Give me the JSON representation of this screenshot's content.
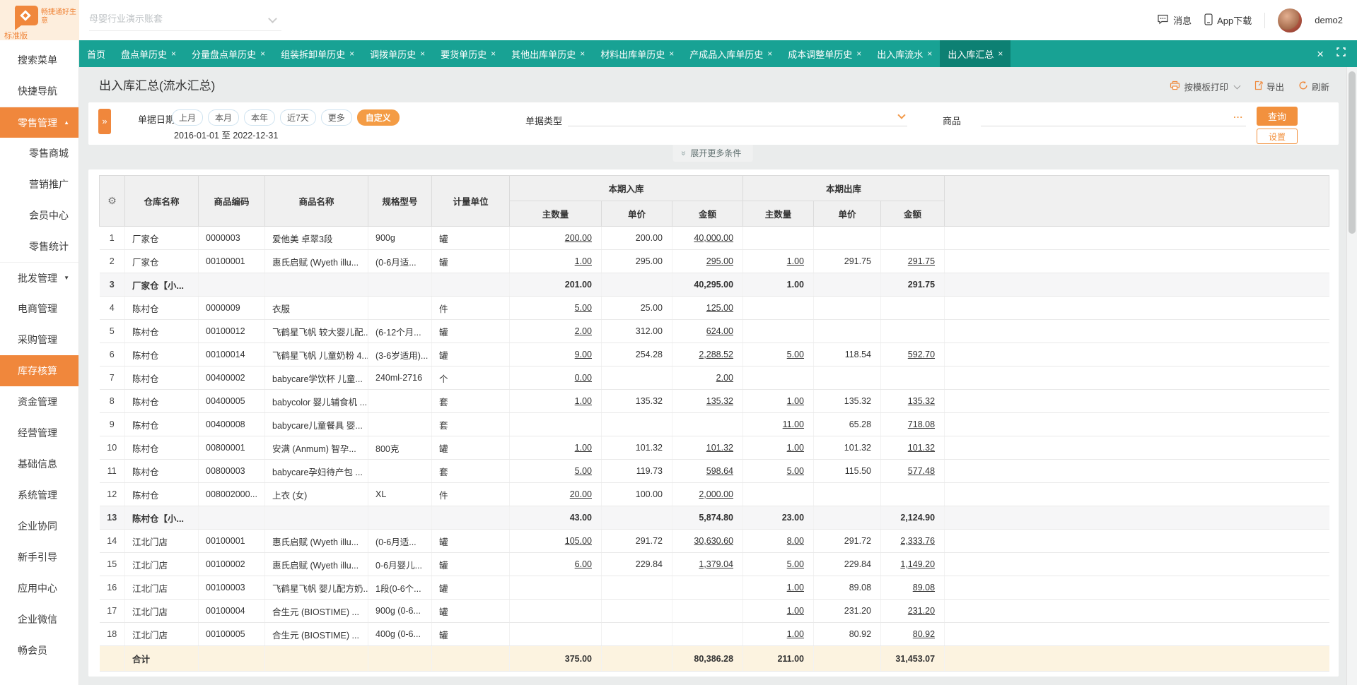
{
  "header": {
    "logo_title": "畅捷通好生意",
    "logo_edition": "标准版",
    "account_selector": "母婴行业演示账套",
    "messages_label": "消息",
    "app_download_label": "App下载",
    "username": "demo2"
  },
  "icons": {
    "close": "×",
    "expander": "»",
    "double_chevron": "»",
    "ellipsis": "...",
    "gear": "⚙",
    "arrow_up": "▲",
    "arrow_down": "▼"
  },
  "tabs": {
    "items": [
      {
        "label": "首页",
        "closable": false,
        "active": false
      },
      {
        "label": "盘点单历史",
        "closable": true,
        "active": false
      },
      {
        "label": "分量盘点单历史",
        "closable": true,
        "active": false
      },
      {
        "label": "组装拆卸单历史",
        "closable": true,
        "active": false
      },
      {
        "label": "调拨单历史",
        "closable": true,
        "active": false
      },
      {
        "label": "要货单历史",
        "closable": true,
        "active": false
      },
      {
        "label": "其他出库单历史",
        "closable": true,
        "active": false
      },
      {
        "label": "材料出库单历史",
        "closable": true,
        "active": false
      },
      {
        "label": "产成品入库单历史",
        "closable": true,
        "active": false
      },
      {
        "label": "成本调整单历史",
        "closable": true,
        "active": false
      },
      {
        "label": "出入库流水",
        "closable": true,
        "active": false
      },
      {
        "label": "出入库汇总",
        "closable": true,
        "active": true
      }
    ]
  },
  "sidebar": {
    "items": [
      {
        "label": "搜索菜单",
        "child": false,
        "active": false,
        "arrow": "",
        "sep": false
      },
      {
        "label": "快捷导航",
        "child": false,
        "active": false,
        "arrow": "",
        "sep": false
      },
      {
        "label": "零售管理",
        "child": false,
        "active": true,
        "arrow": "up",
        "sep": true
      },
      {
        "label": "零售商城",
        "child": true,
        "active": false,
        "arrow": "",
        "sep": false
      },
      {
        "label": "营销推广",
        "child": true,
        "active": false,
        "arrow": "",
        "sep": false
      },
      {
        "label": "会员中心",
        "child": true,
        "active": false,
        "arrow": "",
        "sep": false
      },
      {
        "label": "零售统计",
        "child": true,
        "active": false,
        "arrow": "",
        "sep": false
      },
      {
        "label": "批发管理",
        "child": false,
        "active": false,
        "arrow": "down",
        "sep": true
      },
      {
        "label": "电商管理",
        "child": false,
        "active": false,
        "arrow": "",
        "sep": false
      },
      {
        "label": "采购管理",
        "child": false,
        "active": false,
        "arrow": "",
        "sep": false
      },
      {
        "label": "库存核算",
        "child": false,
        "active": true,
        "arrow": "",
        "sep": false
      },
      {
        "label": "资金管理",
        "child": false,
        "active": false,
        "arrow": "",
        "sep": false
      },
      {
        "label": "经营管理",
        "child": false,
        "active": false,
        "arrow": "",
        "sep": false
      },
      {
        "label": "基础信息",
        "child": false,
        "active": false,
        "arrow": "",
        "sep": false
      },
      {
        "label": "系统管理",
        "child": false,
        "active": false,
        "arrow": "",
        "sep": false
      },
      {
        "label": "企业协同",
        "child": false,
        "active": false,
        "arrow": "",
        "sep": false
      },
      {
        "label": "新手引导",
        "child": false,
        "active": false,
        "arrow": "",
        "sep": false
      },
      {
        "label": "应用中心",
        "child": false,
        "active": false,
        "arrow": "",
        "sep": false
      },
      {
        "label": "企业微信",
        "child": false,
        "active": false,
        "arrow": "",
        "sep": false
      },
      {
        "label": "畅会员",
        "child": false,
        "active": false,
        "arrow": "",
        "sep": false
      }
    ]
  },
  "page": {
    "title": "出入库汇总(流水汇总)",
    "toolbar": {
      "print_label": "按模板打印",
      "export_label": "导出",
      "refresh_label": "刷新"
    }
  },
  "filters": {
    "date_label": "单据日期",
    "date_presets": [
      "上月",
      "本月",
      "本年",
      "近7天",
      "更多"
    ],
    "custom_label": "自定义",
    "date_range": "2016-01-01 至 2022-12-31",
    "doc_type_label": "单据类型",
    "doc_type_value": "",
    "product_label": "商品",
    "product_value": "",
    "search_button": "查询",
    "settings_button": "设置",
    "expand_more": "展开更多条件"
  },
  "table": {
    "columns": {
      "warehouse": "仓库名称",
      "code": "商品编码",
      "name": "商品名称",
      "spec": "规格型号",
      "unit": "计量单位",
      "in_group": "本期入库",
      "out_group": "本期出库",
      "qty": "主数量",
      "price": "单价",
      "amount": "金额"
    },
    "rows": [
      {
        "t": "d",
        "n": "1",
        "wh": "厂家仓",
        "code": "0000003",
        "name": "爱他美 卓翠3段",
        "spec": "900g",
        "unit": "罐",
        "iq": "200.00",
        "ip": "200.00",
        "ia": "40,000.00",
        "oq": "",
        "op": "",
        "oa": ""
      },
      {
        "t": "d",
        "n": "2",
        "wh": "厂家仓",
        "code": "00100001",
        "name": "惠氏启赋 (Wyeth illu...",
        "spec": "(0-6月适...",
        "unit": "罐",
        "iq": "1.00",
        "ip": "295.00",
        "ia": "295.00",
        "oq": "1.00",
        "op": "291.75",
        "oa": "291.75"
      },
      {
        "t": "s",
        "n": "3",
        "wh": "厂家仓【小...",
        "code": "",
        "name": "",
        "spec": "",
        "unit": "",
        "iq": "201.00",
        "ip": "",
        "ia": "40,295.00",
        "oq": "1.00",
        "op": "",
        "oa": "291.75"
      },
      {
        "t": "d",
        "n": "4",
        "wh": "陈村仓",
        "code": "0000009",
        "name": "衣服",
        "spec": "",
        "unit": "件",
        "iq": "5.00",
        "ip": "25.00",
        "ia": "125.00",
        "oq": "",
        "op": "",
        "oa": ""
      },
      {
        "t": "d",
        "n": "5",
        "wh": "陈村仓",
        "code": "00100012",
        "name": "飞鹤星飞帆 较大婴儿配...",
        "spec": "(6-12个月...",
        "unit": "罐",
        "iq": "2.00",
        "ip": "312.00",
        "ia": "624.00",
        "oq": "",
        "op": "",
        "oa": ""
      },
      {
        "t": "d",
        "n": "6",
        "wh": "陈村仓",
        "code": "00100014",
        "name": "飞鹤星飞帆 儿童奶粉 4...",
        "spec": "(3-6岁适用)...",
        "unit": "罐",
        "iq": "9.00",
        "ip": "254.28",
        "ia": "2,288.52",
        "oq": "5.00",
        "op": "118.54",
        "oa": "592.70"
      },
      {
        "t": "d",
        "n": "7",
        "wh": "陈村仓",
        "code": "00400002",
        "name": "babycare学饮杯 儿童...",
        "spec": "240ml-2716",
        "unit": "个",
        "iq": "0.00",
        "ip": "",
        "ia": "2.00",
        "oq": "",
        "op": "",
        "oa": ""
      },
      {
        "t": "d",
        "n": "8",
        "wh": "陈村仓",
        "code": "00400005",
        "name": "babycolor 婴儿辅食机 ...",
        "spec": "",
        "unit": "套",
        "iq": "1.00",
        "ip": "135.32",
        "ia": "135.32",
        "oq": "1.00",
        "op": "135.32",
        "oa": "135.32"
      },
      {
        "t": "d",
        "n": "9",
        "wh": "陈村仓",
        "code": "00400008",
        "name": "babycare儿童餐具 婴...",
        "spec": "",
        "unit": "套",
        "iq": "",
        "ip": "",
        "ia": "",
        "oq": "11.00",
        "op": "65.28",
        "oa": "718.08"
      },
      {
        "t": "d",
        "n": "10",
        "wh": "陈村仓",
        "code": "00800001",
        "name": "安满 (Anmum) 智孕...",
        "spec": "800克",
        "unit": "罐",
        "iq": "1.00",
        "ip": "101.32",
        "ia": "101.32",
        "oq": "1.00",
        "op": "101.32",
        "oa": "101.32"
      },
      {
        "t": "d",
        "n": "11",
        "wh": "陈村仓",
        "code": "00800003",
        "name": "babycare孕妇待产包 ...",
        "spec": "",
        "unit": "套",
        "iq": "5.00",
        "ip": "119.73",
        "ia": "598.64",
        "oq": "5.00",
        "op": "115.50",
        "oa": "577.48"
      },
      {
        "t": "d",
        "n": "12",
        "wh": "陈村仓",
        "code": "008002000...",
        "name": "上衣 (女)",
        "spec": "XL",
        "unit": "件",
        "iq": "20.00",
        "ip": "100.00",
        "ia": "2,000.00",
        "oq": "",
        "op": "",
        "oa": ""
      },
      {
        "t": "s",
        "n": "13",
        "wh": "陈村仓【小...",
        "code": "",
        "name": "",
        "spec": "",
        "unit": "",
        "iq": "43.00",
        "ip": "",
        "ia": "5,874.80",
        "oq": "23.00",
        "op": "",
        "oa": "2,124.90"
      },
      {
        "t": "d",
        "n": "14",
        "wh": "江北门店",
        "code": "00100001",
        "name": "惠氏启赋 (Wyeth illu...",
        "spec": "(0-6月适...",
        "unit": "罐",
        "iq": "105.00",
        "ip": "291.72",
        "ia": "30,630.60",
        "oq": "8.00",
        "op": "291.72",
        "oa": "2,333.76"
      },
      {
        "t": "d",
        "n": "15",
        "wh": "江北门店",
        "code": "00100002",
        "name": "惠氏启赋 (Wyeth illu...",
        "spec": "0-6月婴儿...",
        "unit": "罐",
        "iq": "6.00",
        "ip": "229.84",
        "ia": "1,379.04",
        "oq": "5.00",
        "op": "229.84",
        "oa": "1,149.20"
      },
      {
        "t": "d",
        "n": "16",
        "wh": "江北门店",
        "code": "00100003",
        "name": "飞鹤星飞帆 婴儿配方奶...",
        "spec": "1段(0-6个...",
        "unit": "罐",
        "iq": "",
        "ip": "",
        "ia": "",
        "oq": "1.00",
        "op": "89.08",
        "oa": "89.08"
      },
      {
        "t": "d",
        "n": "17",
        "wh": "江北门店",
        "code": "00100004",
        "name": "合生元 (BIOSTIME) ...",
        "spec": "900g (0-6...",
        "unit": "罐",
        "iq": "",
        "ip": "",
        "ia": "",
        "oq": "1.00",
        "op": "231.20",
        "oa": "231.20"
      },
      {
        "t": "d",
        "n": "18",
        "wh": "江北门店",
        "code": "00100005",
        "name": "合生元 (BIOSTIME) ...",
        "spec": "400g (0-6...",
        "unit": "罐",
        "iq": "",
        "ip": "",
        "ia": "",
        "oq": "1.00",
        "op": "80.92",
        "oa": "80.92"
      },
      {
        "t": "t",
        "n": "",
        "wh": "合计",
        "code": "",
        "name": "",
        "spec": "",
        "unit": "",
        "iq": "375.00",
        "ip": "",
        "ia": "80,386.28",
        "oq": "211.00",
        "op": "",
        "oa": "31,453.07"
      }
    ]
  }
}
